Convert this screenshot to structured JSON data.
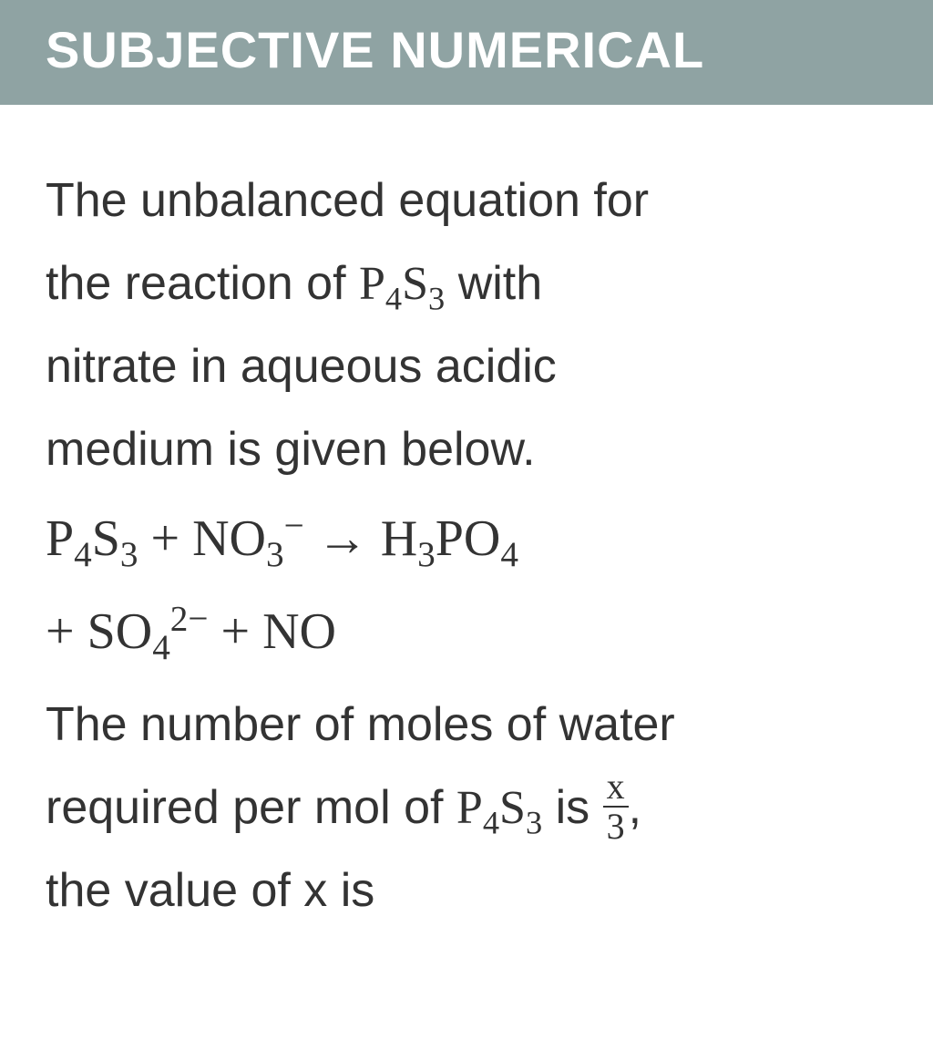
{
  "header": {
    "title": "SUBJECTIVE NUMERICAL",
    "bg_color": "#8fa3a3",
    "text_color": "#ffffff",
    "font_size": 56,
    "font_weight": 700
  },
  "content": {
    "line1_a": "The unbalanced equation for",
    "line2_a": "the reaction of ",
    "compound_p4s3_P": "P",
    "compound_p4s3_4": "4",
    "compound_p4s3_S": "S",
    "compound_p4s3_3": "3",
    "line2_b": " with",
    "line3": "nitrate in aqueous acidic",
    "line4": "medium is given below.",
    "eq": {
      "P": "P",
      "four": "4",
      "S": "S",
      "three": "3",
      "plus1": " + ",
      "N": "N",
      "O": "O",
      "minus": "−",
      "arrow": "→",
      "H": "H",
      "PO": "PO",
      "plus2": "+ ",
      "SO": "SO",
      "two_minus": "2−",
      "plus3": " + ",
      "NO": "NO"
    },
    "line5_a": "The number of moles of water",
    "line6_a": "required per mol of ",
    "line6_b": " is ",
    "frac_num": "x",
    "frac_den": "3",
    "line6_c": ",",
    "line7": "the value of x is"
  },
  "style": {
    "body_font_size": 52,
    "equation_font_size": 56,
    "text_color": "#333333",
    "background_color": "#ffffff",
    "line_height": 1.75
  }
}
